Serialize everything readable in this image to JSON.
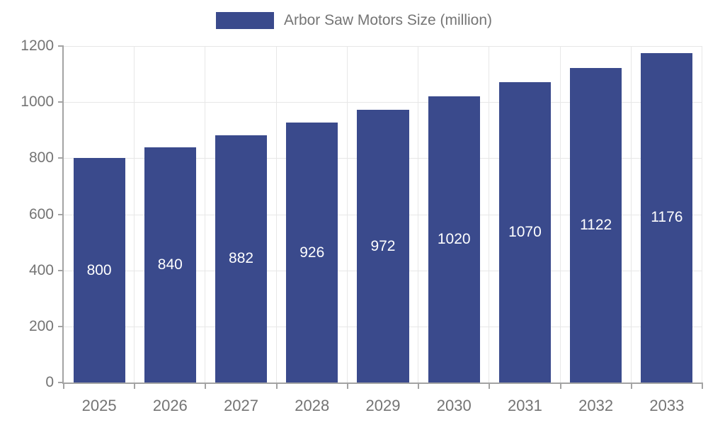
{
  "legend": {
    "label": "Arbor Saw Motors Size (million)"
  },
  "colors": {
    "bar": "#3A4A8C",
    "grid": "#e7e7e7",
    "axis": "#a3a3a3",
    "axis_text": "#747474",
    "legend_text": "#757575",
    "value_label": "#ffffff"
  },
  "chart_data": {
    "type": "bar",
    "title": "",
    "xlabel": "",
    "ylabel": "",
    "categories": [
      "2025",
      "2026",
      "2027",
      "2028",
      "2029",
      "2030",
      "2031",
      "2032",
      "2033"
    ],
    "series": [
      {
        "name": "Arbor Saw Motors Size (million)",
        "values": [
          800,
          840,
          882,
          926,
          972,
          1020,
          1070,
          1122,
          1176
        ]
      }
    ],
    "ylim": [
      0,
      1200
    ],
    "yticks": [
      0,
      200,
      400,
      600,
      800,
      1000,
      1200
    ],
    "grid": true,
    "legend_position": "top-center",
    "bar_value_labels": "inside-center"
  }
}
